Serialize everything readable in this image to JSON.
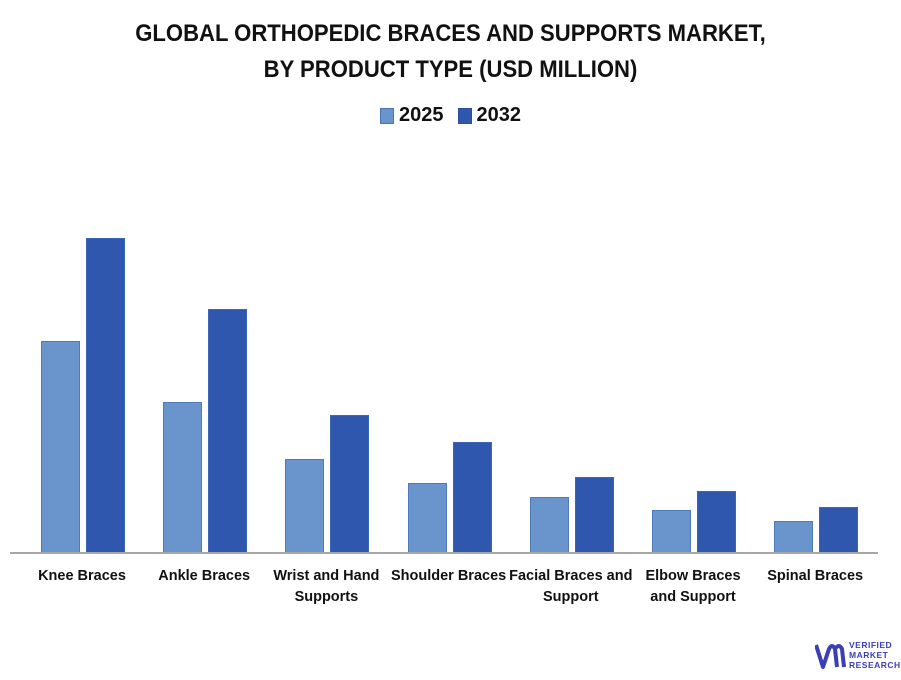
{
  "chart_data": {
    "type": "bar",
    "title": "GLOBAL ORTHOPEDIC BRACES AND SUPPORTS MARKET, BY PRODUCT TYPE (USD MILLION)",
    "title_lines": [
      "GLOBAL ORTHOPEDIC BRACES AND SUPPORTS MARKET,",
      "BY PRODUCT TYPE (USD MILLION)"
    ],
    "xlabel": "",
    "ylabel": "",
    "legend_position": "top",
    "grid": false,
    "categories": [
      "Knee Braces",
      "Ankle Braces",
      "Wrist and Hand Supports",
      "Shoulder Braces",
      "Facial Braces and Support",
      "Elbow Braces and Support",
      "Spinal Braces"
    ],
    "category_label_lines": [
      [
        "Knee Braces"
      ],
      [
        "Ankle Braces"
      ],
      [
        "Wrist and Hand",
        "Supports"
      ],
      [
        "Shoulder Braces"
      ],
      [
        "Facial Braces and",
        "Support"
      ],
      [
        "Elbow Braces",
        "and Support"
      ],
      [
        "Spinal Braces"
      ]
    ],
    "series": [
      {
        "name": "2025",
        "color": "#6a95cc",
        "values": [
          212,
          151,
          94,
          70,
          56,
          43,
          32
        ]
      },
      {
        "name": "2032",
        "color": "#2e57ad",
        "values": [
          315,
          244,
          138,
          111,
          76,
          62,
          46
        ]
      }
    ],
    "ylim": [
      0,
      330
    ],
    "value_note": "relative values (no axis shown)"
  },
  "legend": [
    {
      "label": "2025",
      "color": "#6a95cc"
    },
    {
      "label": "2032",
      "color": "#2e57ad"
    }
  ],
  "branding": {
    "logo_lines": [
      "VERIFIED",
      "MARKET",
      "RESEARCH"
    ],
    "logo_color": "#3a3fb5"
  }
}
